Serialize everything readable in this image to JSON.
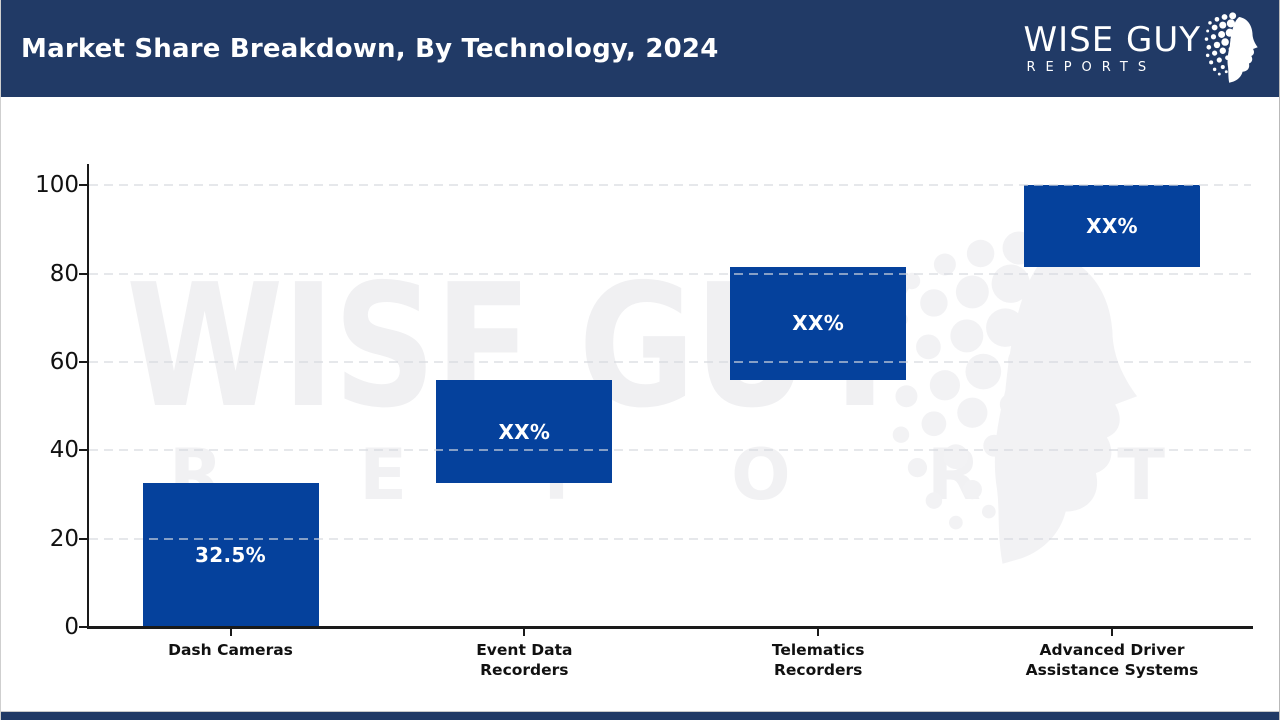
{
  "header": {
    "title": "Market Share Breakdown, By Technology, 2024",
    "logo": {
      "line1": "WISE GUY",
      "line2": "REPORTS"
    },
    "bg_color": "#213A66"
  },
  "watermark": {
    "line1": "WISE GUY",
    "line2": "R E P O R T S"
  },
  "footer": {
    "bg_color": "#213A66"
  },
  "chart_data": {
    "type": "bar",
    "variant": "waterfall",
    "title": "Market Share Breakdown, By Technology, 2024",
    "categories": [
      "Dash Cameras",
      "Event Data\nRecorders",
      "Telematics\nRecorders",
      "Advanced Driver\nAssistance Systems"
    ],
    "segments": [
      {
        "category": "Dash Cameras",
        "start": 0,
        "end": 32.5,
        "label": "32.5%"
      },
      {
        "category": "Event Data Recorders",
        "start": 32.5,
        "end": 56,
        "label": "XX%"
      },
      {
        "category": "Telematics Recorders",
        "start": 56,
        "end": 81.5,
        "label": "XX%"
      },
      {
        "category": "Advanced Driver Assistance Systems",
        "start": 81.5,
        "end": 100,
        "label": "XX%"
      }
    ],
    "yticks": [
      0,
      20,
      40,
      60,
      80,
      100
    ],
    "ylim": [
      0,
      105
    ],
    "xlabel": "",
    "ylabel": "",
    "grid": "horizontal-dashed",
    "legend": "none",
    "bar_color": "#05419C",
    "bar_label_color": "#FFFFFF",
    "axis_color": "#1a1a1a",
    "gridline_color": "#e2e2e2"
  }
}
